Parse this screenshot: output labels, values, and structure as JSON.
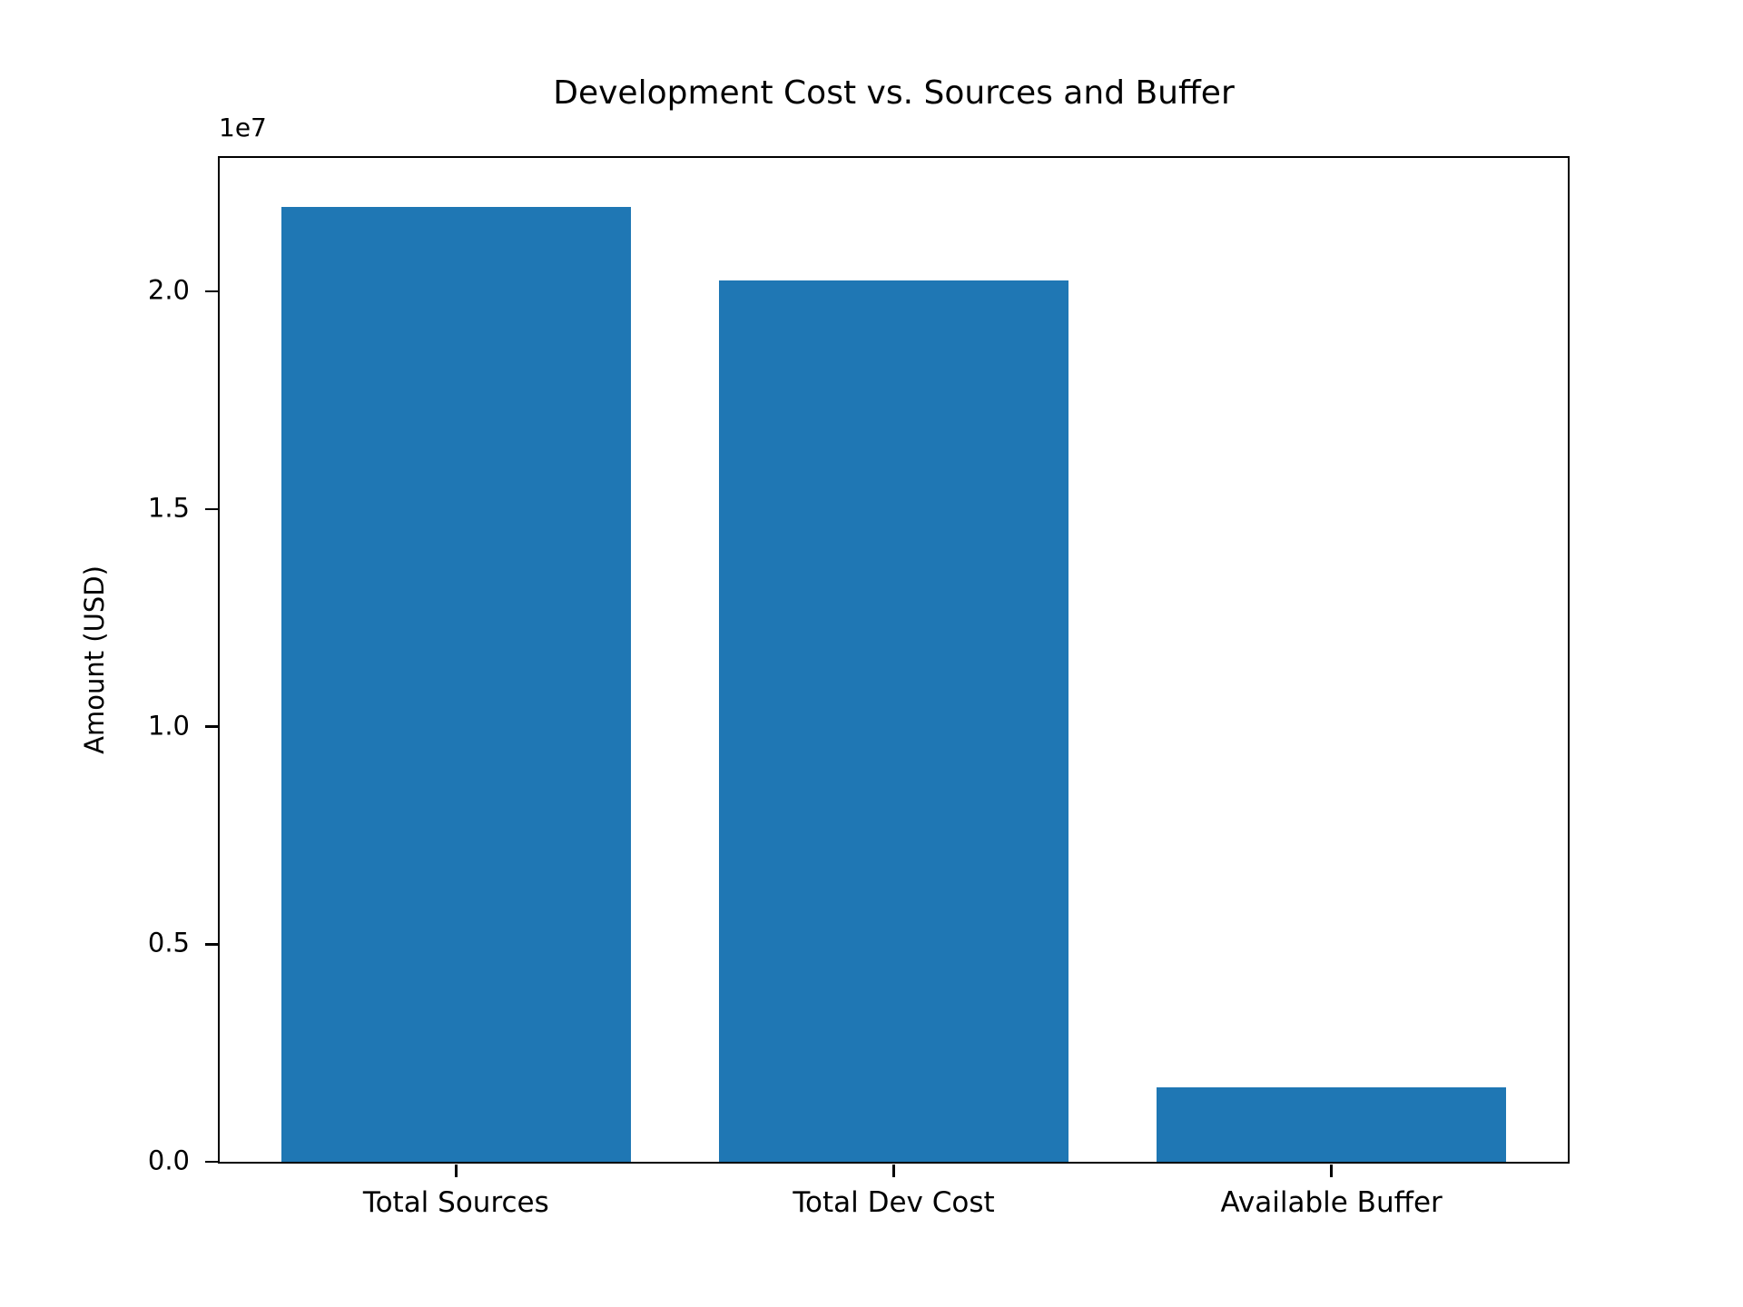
{
  "chart_data": {
    "type": "bar",
    "title": "Development Cost vs. Sources and Buffer",
    "xlabel": "",
    "ylabel": "Amount (USD)",
    "y_offset_label": "1e7",
    "categories": [
      "Total Sources",
      "Total Dev Cost",
      "Available Buffer"
    ],
    "values": [
      21950000,
      20250000,
      1720000
    ],
    "bar_color": "#1f77b4",
    "bar_width": 0.8,
    "xlim": [
      -0.54,
      2.54
    ],
    "ylim": [
      0,
      23070000
    ],
    "yticks": [
      0,
      5000000,
      10000000,
      15000000,
      20000000
    ],
    "ytick_labels": [
      "0.0",
      "0.5",
      "1.0",
      "1.5",
      "2.0"
    ],
    "grid": false,
    "legend": "none",
    "background_color": "#ffffff",
    "text_color": "#000000"
  }
}
